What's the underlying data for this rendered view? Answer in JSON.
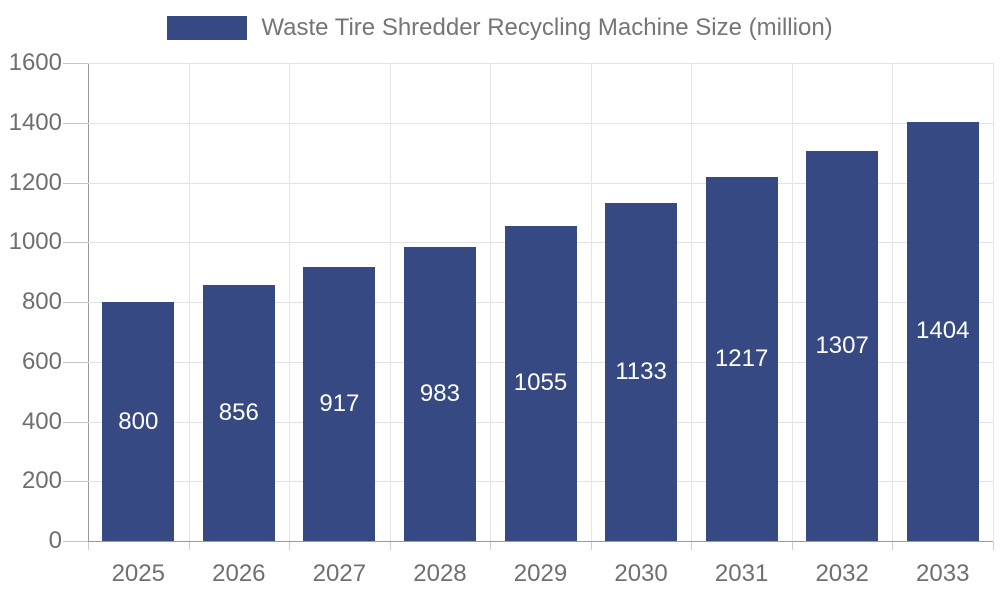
{
  "legend": {
    "label": "Waste Tire Shredder Recycling Machine Size (million)"
  },
  "chart_data": {
    "type": "bar",
    "title": "Waste Tire Shredder Recycling Machine Size (million)",
    "categories": [
      "2025",
      "2026",
      "2027",
      "2028",
      "2029",
      "2030",
      "2031",
      "2032",
      "2033"
    ],
    "values": [
      800,
      856,
      917,
      983,
      1055,
      1133,
      1217,
      1307,
      1404
    ],
    "series": [
      {
        "name": "Waste Tire Shredder Recycling Machine Size (million)",
        "values": [
          800,
          856,
          917,
          983,
          1055,
          1133,
          1217,
          1307,
          1404
        ]
      }
    ],
    "xlabel": "",
    "ylabel": "",
    "ylim": [
      0,
      1600
    ],
    "ytick_step": 200,
    "yticks": [
      0,
      200,
      400,
      600,
      800,
      1000,
      1200,
      1400,
      1600
    ],
    "grid": true,
    "legend_position": "top",
    "value_labels_shown": true,
    "colors": {
      "bar": "#364982",
      "grid": "#e2e2e2",
      "axis": "#999999",
      "tick_text": "#6f6f6f",
      "legend_text": "#757575",
      "value_label": "#ffffff",
      "background": "#ffffff"
    }
  }
}
